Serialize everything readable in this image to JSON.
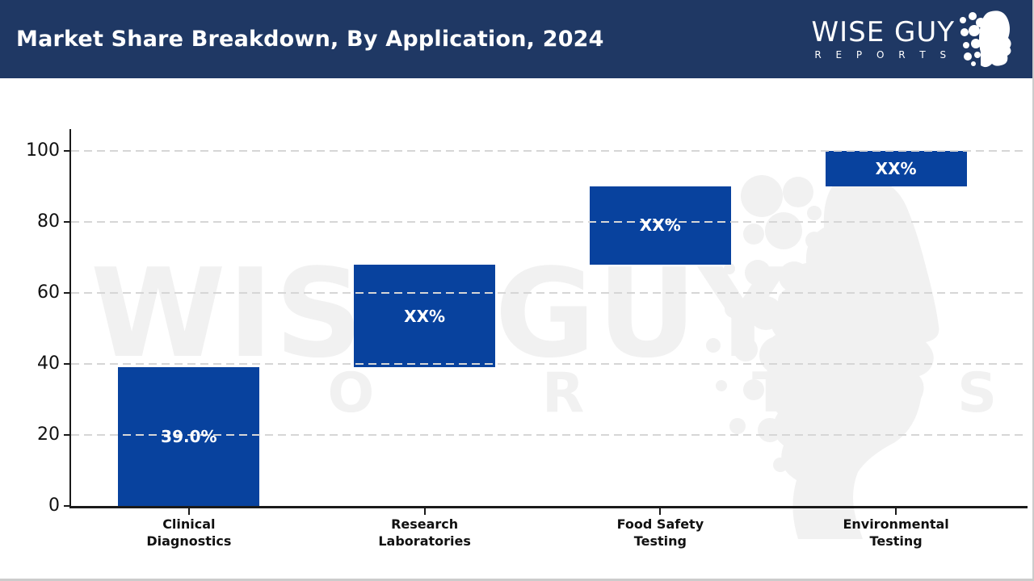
{
  "header": {
    "title": "Market Share Breakdown, By Application, 2024",
    "logo_line1": "WISE GUY",
    "logo_line2": "R E P O R T S"
  },
  "watermark": {
    "line1": "WISE GUY",
    "line2": "P O R T S"
  },
  "colors": {
    "header_bg": "#1f3864",
    "bar": "#08429e",
    "bar_label": "#ffffff",
    "grid": "#d6d6d6",
    "axis": "#1a1a1a",
    "watermark": "#f1f1f1"
  },
  "chart_data": {
    "type": "bar",
    "subtype": "floating-waterfall",
    "title": "Market Share Breakdown, By Application, 2024",
    "categories": [
      "Clinical\nDiagnostics",
      "Research\nLaboratories",
      "Food Safety\nTesting",
      "Environmental\nTesting"
    ],
    "segments": [
      {
        "category": "Clinical Diagnostics",
        "from": 0,
        "to": 39,
        "label": "39.0%"
      },
      {
        "category": "Research Laboratories",
        "from": 39,
        "to": 68,
        "label": "XX%"
      },
      {
        "category": "Food Safety Testing",
        "from": 68,
        "to": 90,
        "label": "XX%"
      },
      {
        "category": "Environmental Testing",
        "from": 90,
        "to": 100,
        "label": "XX%"
      }
    ],
    "ylim": [
      0,
      100
    ],
    "yticks": [
      0,
      20,
      40,
      60,
      80,
      100
    ],
    "xlabel": "",
    "ylabel": "",
    "grid": "horizontal-dashed-over-bars",
    "legend": "none"
  }
}
